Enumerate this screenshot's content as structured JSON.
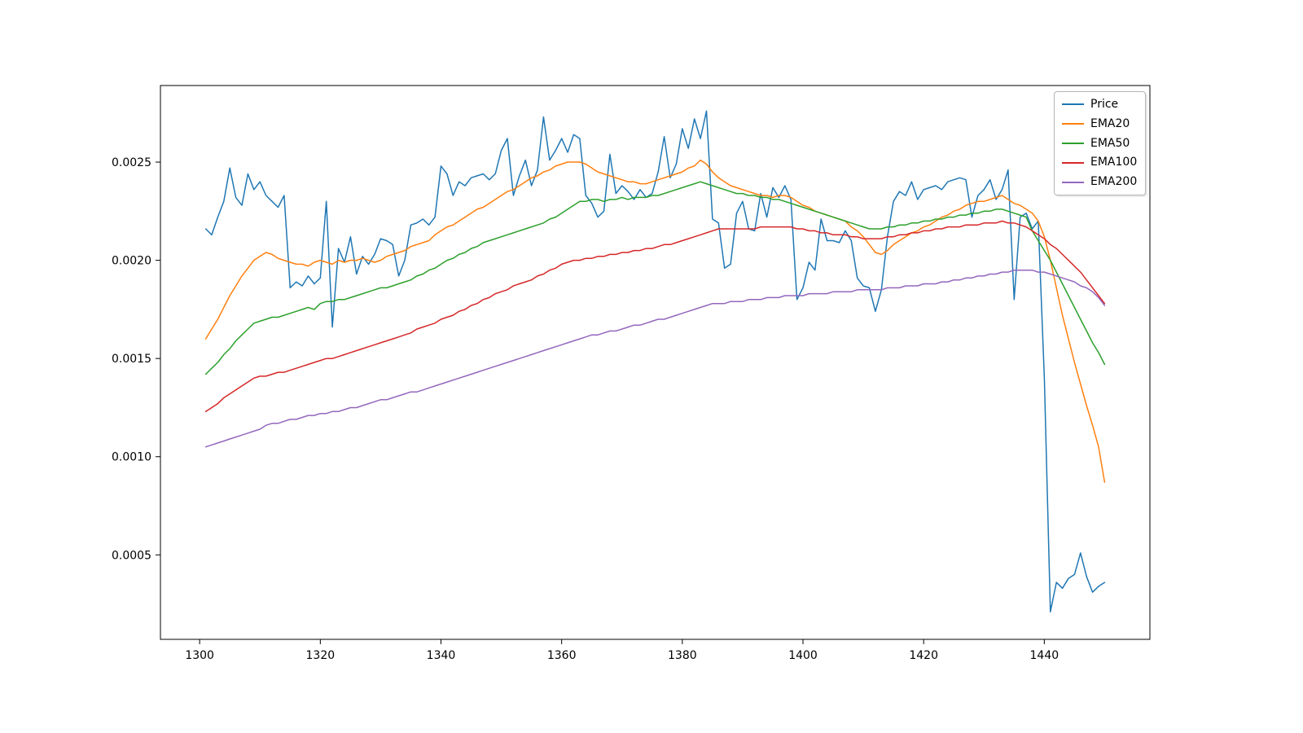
{
  "figure": {
    "background": "#ffffff"
  },
  "chart_data": {
    "type": "line",
    "title": "",
    "xlabel": "",
    "ylabel": "",
    "grid": false,
    "legend_position": "upper right",
    "legend_entries": [
      "Price",
      "EMA20",
      "EMA50",
      "EMA100",
      "EMA200"
    ],
    "x_ticks": [
      1300,
      1320,
      1340,
      1360,
      1380,
      1400,
      1420,
      1440
    ],
    "y_ticks": [
      0.0005,
      0.001,
      0.0015,
      0.002,
      0.0025
    ],
    "y_tick_labels": [
      "0.0005",
      "0.0010",
      "0.0015",
      "0.0020",
      "0.0025"
    ],
    "xlim": [
      1293.5,
      1457.5
    ],
    "ylim": [
      7e-05,
      0.00289
    ],
    "x_start": 1301,
    "x_step": 1,
    "series": [
      {
        "name": "Price",
        "color": "#1f77b4",
        "values": [
          0.00216,
          0.00213,
          0.00222,
          0.0023,
          0.00247,
          0.00232,
          0.00228,
          0.00244,
          0.00236,
          0.0024,
          0.00233,
          0.0023,
          0.00227,
          0.00233,
          0.00186,
          0.00189,
          0.00187,
          0.00192,
          0.00188,
          0.00191,
          0.0023,
          0.00166,
          0.00206,
          0.00199,
          0.00212,
          0.00193,
          0.00202,
          0.00198,
          0.00203,
          0.00211,
          0.0021,
          0.00208,
          0.00192,
          0.002,
          0.00218,
          0.00219,
          0.00221,
          0.00218,
          0.00222,
          0.00248,
          0.00244,
          0.00233,
          0.0024,
          0.00238,
          0.00242,
          0.00243,
          0.00244,
          0.00241,
          0.00244,
          0.00256,
          0.00262,
          0.00233,
          0.00243,
          0.00251,
          0.00238,
          0.00246,
          0.00273,
          0.00251,
          0.00256,
          0.00262,
          0.00255,
          0.00264,
          0.00262,
          0.00233,
          0.00229,
          0.00222,
          0.00225,
          0.00254,
          0.00234,
          0.00238,
          0.00235,
          0.00231,
          0.00236,
          0.00232,
          0.00234,
          0.00245,
          0.00263,
          0.00242,
          0.00249,
          0.00267,
          0.00257,
          0.00272,
          0.00262,
          0.00276,
          0.00221,
          0.00219,
          0.00196,
          0.00198,
          0.00224,
          0.0023,
          0.00216,
          0.00215,
          0.00234,
          0.00222,
          0.00237,
          0.00232,
          0.00238,
          0.00231,
          0.0018,
          0.00186,
          0.00199,
          0.00195,
          0.00221,
          0.0021,
          0.0021,
          0.00209,
          0.00215,
          0.0021,
          0.00191,
          0.00187,
          0.00186,
          0.00174,
          0.00185,
          0.00212,
          0.0023,
          0.00235,
          0.00233,
          0.0024,
          0.00231,
          0.00236,
          0.00237,
          0.00238,
          0.00236,
          0.0024,
          0.00241,
          0.00242,
          0.00241,
          0.00222,
          0.00233,
          0.00236,
          0.00241,
          0.00231,
          0.00236,
          0.00246,
          0.0018,
          0.00222,
          0.00224,
          0.00216,
          0.0022,
          0.0014,
          0.00021,
          0.00036,
          0.00033,
          0.00038,
          0.0004,
          0.00051,
          0.00039,
          0.00031,
          0.00034,
          0.00036
        ]
      },
      {
        "name": "EMA20",
        "color": "#ff7f0e",
        "values": [
          0.0016,
          0.00165,
          0.0017,
          0.00176,
          0.00182,
          0.00187,
          0.00192,
          0.00196,
          0.002,
          0.00202,
          0.00204,
          0.00203,
          0.00201,
          0.002,
          0.00199,
          0.00198,
          0.00198,
          0.00197,
          0.00199,
          0.002,
          0.00199,
          0.00198,
          0.002,
          0.00199,
          0.002,
          0.002,
          0.00201,
          0.002,
          0.00199,
          0.002,
          0.00202,
          0.00203,
          0.00204,
          0.00205,
          0.00207,
          0.00208,
          0.00209,
          0.0021,
          0.00213,
          0.00215,
          0.00217,
          0.00218,
          0.0022,
          0.00222,
          0.00224,
          0.00226,
          0.00227,
          0.00229,
          0.00231,
          0.00233,
          0.00235,
          0.00236,
          0.00238,
          0.0024,
          0.00242,
          0.00243,
          0.00245,
          0.00246,
          0.00248,
          0.00249,
          0.0025,
          0.0025,
          0.0025,
          0.00249,
          0.00247,
          0.00245,
          0.00244,
          0.00243,
          0.00242,
          0.00241,
          0.0024,
          0.0024,
          0.00239,
          0.00239,
          0.0024,
          0.00241,
          0.00242,
          0.00243,
          0.00244,
          0.00245,
          0.00247,
          0.00248,
          0.00251,
          0.00249,
          0.00245,
          0.00242,
          0.0024,
          0.00238,
          0.00237,
          0.00236,
          0.00235,
          0.00234,
          0.00233,
          0.00233,
          0.00232,
          0.00233,
          0.00233,
          0.00232,
          0.0023,
          0.00228,
          0.00227,
          0.00225,
          0.00224,
          0.00223,
          0.00222,
          0.00221,
          0.0022,
          0.00217,
          0.00215,
          0.00212,
          0.00208,
          0.00204,
          0.00203,
          0.00205,
          0.00208,
          0.0021,
          0.00212,
          0.00214,
          0.00215,
          0.00217,
          0.00218,
          0.0022,
          0.00222,
          0.00223,
          0.00225,
          0.00226,
          0.00228,
          0.00229,
          0.0023,
          0.0023,
          0.00231,
          0.00232,
          0.00233,
          0.00231,
          0.00229,
          0.00228,
          0.00226,
          0.00224,
          0.0022,
          0.00212,
          0.002,
          0.00186,
          0.00172,
          0.0016,
          0.00148,
          0.00137,
          0.00126,
          0.00116,
          0.00105,
          0.00087
        ]
      },
      {
        "name": "EMA50",
        "color": "#2ca02c",
        "values": [
          0.00142,
          0.00145,
          0.00148,
          0.00152,
          0.00155,
          0.00159,
          0.00162,
          0.00165,
          0.00168,
          0.00169,
          0.0017,
          0.00171,
          0.00171,
          0.00172,
          0.00173,
          0.00174,
          0.00175,
          0.00176,
          0.00175,
          0.00178,
          0.00179,
          0.00179,
          0.0018,
          0.0018,
          0.00181,
          0.00182,
          0.00183,
          0.00184,
          0.00185,
          0.00186,
          0.00186,
          0.00187,
          0.00188,
          0.00189,
          0.0019,
          0.00192,
          0.00193,
          0.00195,
          0.00196,
          0.00198,
          0.002,
          0.00201,
          0.00203,
          0.00204,
          0.00206,
          0.00207,
          0.00209,
          0.0021,
          0.00211,
          0.00212,
          0.00213,
          0.00214,
          0.00215,
          0.00216,
          0.00217,
          0.00218,
          0.00219,
          0.00221,
          0.00222,
          0.00224,
          0.00226,
          0.00228,
          0.0023,
          0.0023,
          0.00231,
          0.00231,
          0.0023,
          0.00231,
          0.00231,
          0.00232,
          0.00231,
          0.00232,
          0.00232,
          0.00232,
          0.00233,
          0.00233,
          0.00234,
          0.00235,
          0.00236,
          0.00237,
          0.00238,
          0.00239,
          0.0024,
          0.00239,
          0.00238,
          0.00237,
          0.00236,
          0.00235,
          0.00234,
          0.00234,
          0.00233,
          0.00233,
          0.00232,
          0.00232,
          0.00231,
          0.00231,
          0.0023,
          0.00229,
          0.00228,
          0.00227,
          0.00226,
          0.00225,
          0.00224,
          0.00223,
          0.00222,
          0.00221,
          0.0022,
          0.00219,
          0.00218,
          0.00217,
          0.00216,
          0.00216,
          0.00216,
          0.00217,
          0.00217,
          0.00218,
          0.00218,
          0.00219,
          0.00219,
          0.0022,
          0.0022,
          0.00221,
          0.00221,
          0.00222,
          0.00222,
          0.00223,
          0.00223,
          0.00224,
          0.00224,
          0.00225,
          0.00225,
          0.00226,
          0.00226,
          0.00225,
          0.00224,
          0.00223,
          0.00222,
          0.00215,
          0.0021,
          0.00205,
          0.002,
          0.00194,
          0.00188,
          0.00182,
          0.00176,
          0.0017,
          0.00164,
          0.00158,
          0.00153,
          0.00147
        ]
      },
      {
        "name": "EMA100",
        "color": "#d62728",
        "values": [
          0.00123,
          0.00125,
          0.00127,
          0.0013,
          0.00132,
          0.00134,
          0.00136,
          0.00138,
          0.0014,
          0.00141,
          0.00141,
          0.00142,
          0.00143,
          0.00143,
          0.00144,
          0.00145,
          0.00146,
          0.00147,
          0.00148,
          0.00149,
          0.0015,
          0.0015,
          0.00151,
          0.00152,
          0.00153,
          0.00154,
          0.00155,
          0.00156,
          0.00157,
          0.00158,
          0.00159,
          0.0016,
          0.00161,
          0.00162,
          0.00163,
          0.00165,
          0.00166,
          0.00167,
          0.00168,
          0.0017,
          0.00171,
          0.00172,
          0.00174,
          0.00175,
          0.00177,
          0.00178,
          0.0018,
          0.00181,
          0.00183,
          0.00184,
          0.00185,
          0.00187,
          0.00188,
          0.00189,
          0.0019,
          0.00192,
          0.00193,
          0.00195,
          0.00196,
          0.00198,
          0.00199,
          0.002,
          0.002,
          0.00201,
          0.00201,
          0.00202,
          0.00202,
          0.00203,
          0.00203,
          0.00204,
          0.00204,
          0.00205,
          0.00205,
          0.00206,
          0.00206,
          0.00207,
          0.00208,
          0.00208,
          0.00209,
          0.0021,
          0.00211,
          0.00212,
          0.00213,
          0.00214,
          0.00215,
          0.00216,
          0.00216,
          0.00216,
          0.00216,
          0.00216,
          0.00216,
          0.00216,
          0.00217,
          0.00217,
          0.00217,
          0.00217,
          0.00217,
          0.00217,
          0.00216,
          0.00216,
          0.00215,
          0.00215,
          0.00214,
          0.00214,
          0.00213,
          0.00213,
          0.00213,
          0.00212,
          0.00212,
          0.00211,
          0.00211,
          0.00211,
          0.00211,
          0.00212,
          0.00212,
          0.00213,
          0.00213,
          0.00214,
          0.00214,
          0.00215,
          0.00215,
          0.00216,
          0.00216,
          0.00217,
          0.00217,
          0.00217,
          0.00218,
          0.00218,
          0.00218,
          0.00219,
          0.00219,
          0.00219,
          0.0022,
          0.00219,
          0.00219,
          0.00218,
          0.00217,
          0.00215,
          0.00213,
          0.00211,
          0.00208,
          0.00206,
          0.00203,
          0.002,
          0.00197,
          0.00194,
          0.0019,
          0.00186,
          0.00182,
          0.00178
        ]
      },
      {
        "name": "EMA200",
        "color": "#9467bd",
        "values": [
          0.00105,
          0.00106,
          0.00107,
          0.00108,
          0.00109,
          0.0011,
          0.00111,
          0.00112,
          0.00113,
          0.00114,
          0.00116,
          0.00117,
          0.00117,
          0.00118,
          0.00119,
          0.00119,
          0.0012,
          0.00121,
          0.00121,
          0.00122,
          0.00122,
          0.00123,
          0.00123,
          0.00124,
          0.00125,
          0.00125,
          0.00126,
          0.00127,
          0.00128,
          0.00129,
          0.00129,
          0.0013,
          0.00131,
          0.00132,
          0.00133,
          0.00133,
          0.00134,
          0.00135,
          0.00136,
          0.00137,
          0.00138,
          0.00139,
          0.0014,
          0.00141,
          0.00142,
          0.00143,
          0.00144,
          0.00145,
          0.00146,
          0.00147,
          0.00148,
          0.00149,
          0.0015,
          0.00151,
          0.00152,
          0.00153,
          0.00154,
          0.00155,
          0.00156,
          0.00157,
          0.00158,
          0.00159,
          0.0016,
          0.00161,
          0.00162,
          0.00162,
          0.00163,
          0.00164,
          0.00164,
          0.00165,
          0.00166,
          0.00167,
          0.00167,
          0.00168,
          0.00169,
          0.0017,
          0.0017,
          0.00171,
          0.00172,
          0.00173,
          0.00174,
          0.00175,
          0.00176,
          0.00177,
          0.00178,
          0.00178,
          0.00178,
          0.00179,
          0.00179,
          0.00179,
          0.0018,
          0.0018,
          0.0018,
          0.00181,
          0.00181,
          0.00181,
          0.00182,
          0.00182,
          0.00182,
          0.00182,
          0.00183,
          0.00183,
          0.00183,
          0.00183,
          0.00184,
          0.00184,
          0.00184,
          0.00184,
          0.00185,
          0.00185,
          0.00185,
          0.00185,
          0.00185,
          0.00186,
          0.00186,
          0.00186,
          0.00187,
          0.00187,
          0.00187,
          0.00188,
          0.00188,
          0.00188,
          0.00189,
          0.00189,
          0.0019,
          0.0019,
          0.00191,
          0.00191,
          0.00192,
          0.00192,
          0.00193,
          0.00193,
          0.00194,
          0.00194,
          0.00195,
          0.00195,
          0.00195,
          0.00195,
          0.00194,
          0.00194,
          0.00193,
          0.00192,
          0.00191,
          0.0019,
          0.00189,
          0.00187,
          0.00186,
          0.00184,
          0.00181,
          0.00177
        ]
      }
    ]
  }
}
